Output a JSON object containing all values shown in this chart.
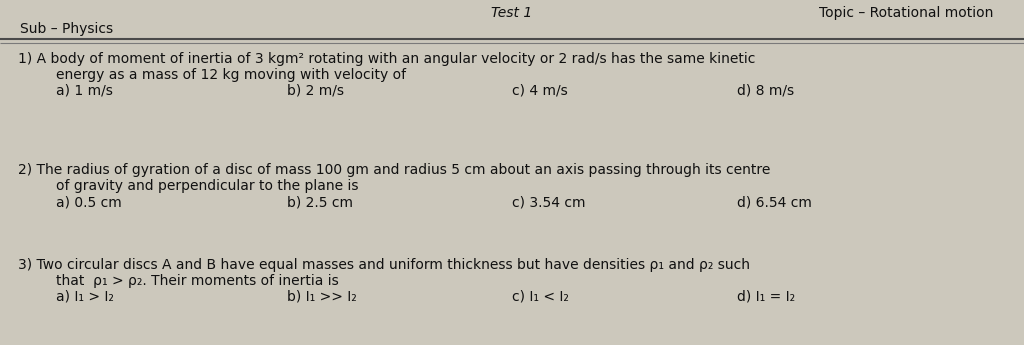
{
  "bg_color": "#ccc8bc",
  "text_color": "#111111",
  "header_top": "Topic – Rotational motion",
  "header_sub": "Sub – Physics",
  "title_top": "Test 1",
  "questions": [
    {
      "number": "1)",
      "line1": "A body of moment of inertia of 3 kgm² rotating with an angular velocity or 2 rad/s has the same kinetic",
      "line2": "energy as a mass of 12 kg moving with velocity of",
      "options": [
        "a) 1 m/s",
        "b) 2 m/s",
        "c) 4 m/s",
        "d) 8 m/s"
      ]
    },
    {
      "number": "2)",
      "line1": "The radius of gyration of a disc of mass 100 gm and radius 5 cm about an axis passing through its centre",
      "line2": "of gravity and perpendicular to the plane is",
      "options": [
        "a) 0.5 cm",
        "b) 2.5 cm",
        "c) 3.54 cm",
        "d) 6.54 cm"
      ]
    },
    {
      "number": "3)",
      "line1": "Two circular discs A and B have equal masses and uniform thickness but have densities ρ₁ and ρ₂ such",
      "line2": "that  ρ₁ > ρ₂. Their moments of inertia is",
      "options": [
        "a) I₁ > I₂",
        "b) I₁ >> I₂",
        "c) I₁ < I₂",
        "d) I₁ = I₂"
      ]
    }
  ],
  "q_font_size": 10.0,
  "header_font_size": 10.0,
  "line1_colors": [
    "#333333",
    "#555555"
  ],
  "line_color1": "#444444",
  "line_color2": "#888888"
}
